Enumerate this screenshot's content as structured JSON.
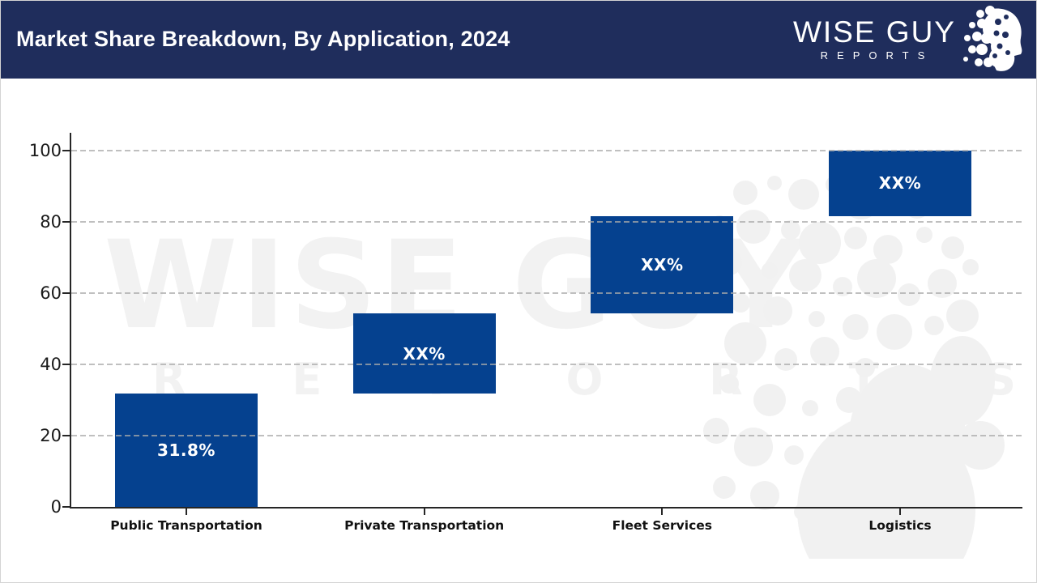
{
  "header": {
    "title": "Market Share Breakdown, By Application, 2024",
    "bg_color": "#1f2d5c",
    "logo": {
      "line1": "WISE GUY",
      "line2": "REPORTS"
    }
  },
  "watermark": {
    "line1": "WISE GUY",
    "line2": "R E P O R T S",
    "color": "#f2f2f2"
  },
  "chart_data": {
    "type": "bar",
    "subtype": "waterfall",
    "title": "Market Share Breakdown, By Application, 2024",
    "categories": [
      "Public Transportation",
      "Private Transportation",
      "Fleet Services",
      "Logistics"
    ],
    "segments": [
      {
        "category": "Public Transportation",
        "start": 0,
        "end": 31.8,
        "label": "31.8%"
      },
      {
        "category": "Private Transportation",
        "start": 31.8,
        "end": 54.3,
        "label": "XX%"
      },
      {
        "category": "Fleet Services",
        "start": 54.3,
        "end": 81.6,
        "label": "XX%"
      },
      {
        "category": "Logistics",
        "start": 81.6,
        "end": 100,
        "label": "XX%"
      }
    ],
    "y_ticks": [
      0,
      20,
      40,
      60,
      80,
      100
    ],
    "ylim": [
      0,
      105
    ],
    "xlabel": "",
    "ylabel": "",
    "grid": true,
    "grid_style": "dashed",
    "legend": "none",
    "colors": {
      "bar": "#05418f",
      "bar_label": "#ffffff",
      "axis": "#262626",
      "tick_text": "#1a1a1a",
      "grid": "#aaaaaa"
    }
  }
}
